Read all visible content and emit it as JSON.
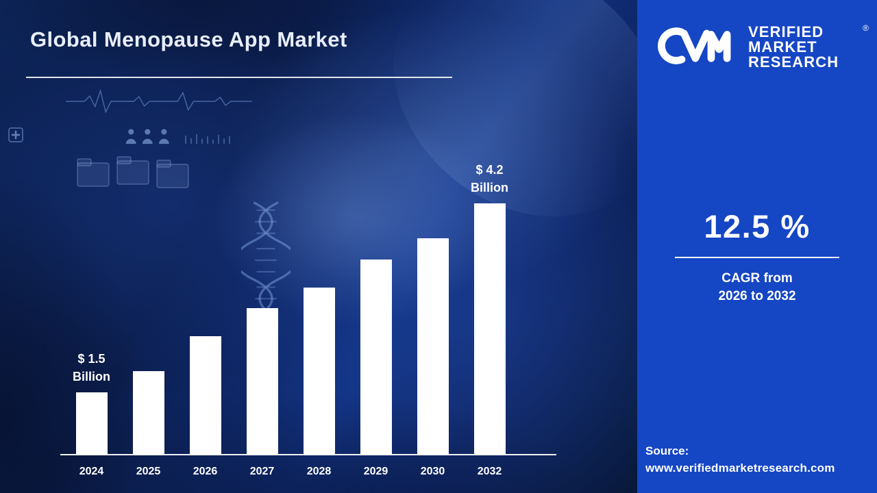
{
  "title": "Global Menopause App Market",
  "brand": {
    "name_lines": [
      "VERIFIED",
      "MARKET",
      "RESEARCH"
    ],
    "registered_mark": "®"
  },
  "stats": {
    "cagr_value": "12.5 %",
    "cagr_caption": [
      "CAGR from",
      "2026 to 2032"
    ]
  },
  "source": {
    "label": "Source:",
    "website": "www.verifiedmarketresearch.com"
  },
  "colors": {
    "panel_blue": "#1546c4",
    "bar_color": "#ffffff",
    "title_color": "#e8eefb",
    "bg_deep_blue": "#0b1e4e"
  },
  "chart_data": {
    "type": "bar",
    "title": "Global Menopause App Market",
    "unit": "USD Billion",
    "categories": [
      "2024",
      "2025",
      "2026",
      "2027",
      "2028",
      "2029",
      "2030",
      "2032"
    ],
    "values": [
      1.5,
      1.8,
      2.3,
      2.7,
      3.0,
      3.4,
      3.7,
      4.2
    ],
    "annotations": [
      {
        "index": 0,
        "lines": [
          "$ 1.5",
          "Billion"
        ]
      },
      {
        "index": 7,
        "lines": [
          "$ 4.2",
          "Billion"
        ]
      }
    ],
    "ylim": [
      0,
      4.6
    ],
    "grid": false,
    "legend": false,
    "bar_color": "#ffffff",
    "xlabel": "",
    "ylabel": ""
  }
}
